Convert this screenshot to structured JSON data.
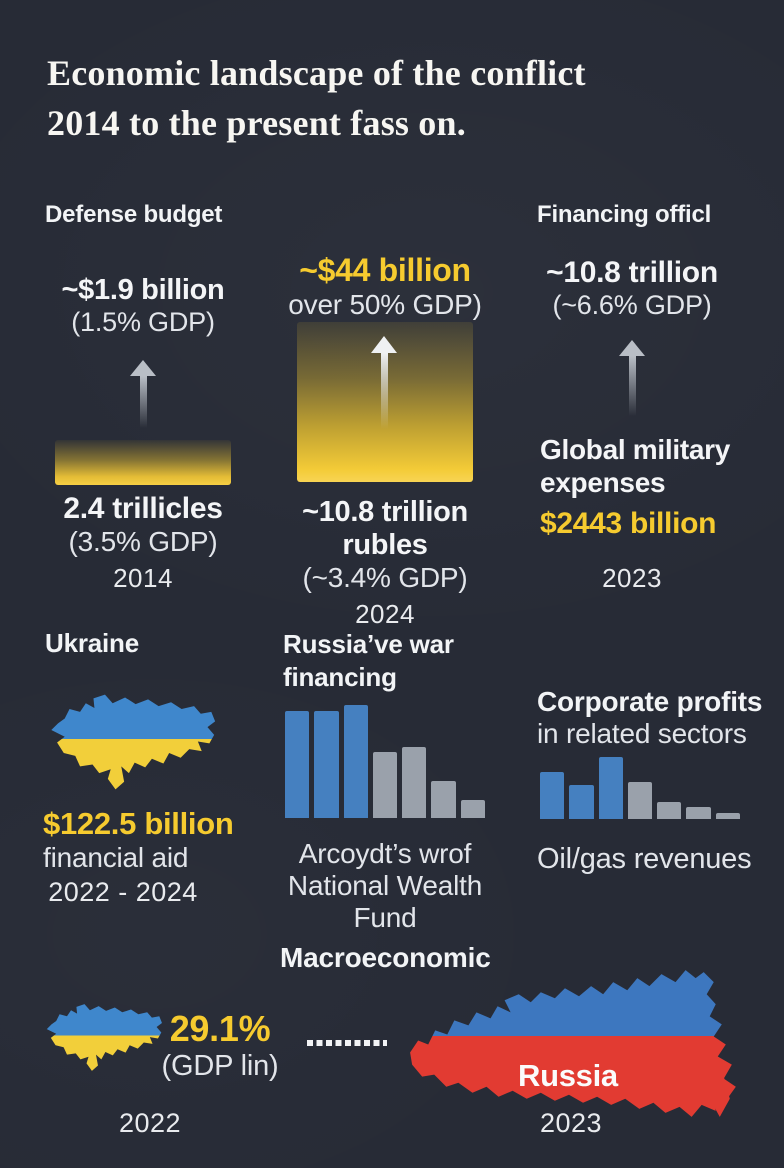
{
  "title": {
    "line1": "Economic landscape of the conflict",
    "line2": "2014 to the present fass on."
  },
  "colors": {
    "background": "#272b36",
    "yellow": "#f6cb2f",
    "blue": "#4580c0",
    "gray": "#9aa1ab",
    "map_blue": "#3f87cc",
    "map_yellow": "#f2cf3a",
    "russia_blue": "#3d77bf",
    "russia_red": "#e23b32",
    "arrow_gray": "#b9bec6",
    "text_white": "#f2f4f6"
  },
  "defense": {
    "heading": "Defense budget",
    "y2014": {
      "value": "~$1.9 billion",
      "note": "(1.5% GDP)",
      "base_value": "2.4 trillicles",
      "base_note": "(3.5% GDP)",
      "year": "2014"
    },
    "y2024": {
      "value": "~$44 billion",
      "note": "over 50% GDP)",
      "base_value": "~10.8 trillion rubles",
      "base_note": "(~3.4% GDP)",
      "year": "2024"
    }
  },
  "financing": {
    "heading": "Financing officl",
    "value": "~10.8 trillion",
    "note": "(~6.6% GDP)",
    "global_line1": "Global military",
    "global_line2": "expenses",
    "global_value": "$2443 billion",
    "year": "2023"
  },
  "ukraine_aid": {
    "heading": "Ukraine",
    "value": "$122.5 billion",
    "label": "financial aid",
    "period": "2022 - 2024"
  },
  "war_financing": {
    "heading_line1": "Russia’ve war",
    "heading_line2": "financing",
    "caption_line1": "Arcoydt’s wrof",
    "caption_line2": "National Wealth Fund"
  },
  "corporate": {
    "heading": "Corporate profits",
    "subheading": "in related sectors",
    "caption": "Oil/gas revenues"
  },
  "macro": {
    "heading": "Macroeconomic",
    "ukraine_value": "29.1%",
    "ukraine_note": "(GDP lin)",
    "ukraine_year": "2022",
    "russia_label": "Russia",
    "russia_year": "2023"
  },
  "chart_data": [
    {
      "type": "bar",
      "title": "Russia’ve war financing",
      "caption": "Arcoydt’s wrof National Wealth Fund",
      "unit": "relative height, % of tallest bar (no axis shown)",
      "values": [
        95,
        95,
        100,
        58,
        63,
        33,
        16
      ],
      "series_colors": [
        "blue",
        "blue",
        "blue",
        "gray",
        "gray",
        "gray",
        "gray"
      ],
      "grid": false,
      "legend": false
    },
    {
      "type": "bar",
      "title": "Corporate profits in related sectors",
      "caption": "Oil/gas revenues",
      "unit": "relative height, % of tallest bar (no axis shown)",
      "values": [
        76,
        55,
        100,
        60,
        28,
        19,
        10
      ],
      "series_colors": [
        "blue",
        "blue",
        "blue",
        "gray",
        "gray",
        "gray",
        "gray"
      ],
      "grid": false,
      "legend": false
    },
    {
      "type": "bar",
      "title": "Defense budget (pictorial gold bars)",
      "categories": [
        "2014",
        "2024"
      ],
      "unit": "relative height, % of tallest block",
      "values": [
        28,
        100
      ],
      "series_colors": [
        "gold",
        "gold"
      ],
      "grid": false,
      "legend": false
    }
  ]
}
